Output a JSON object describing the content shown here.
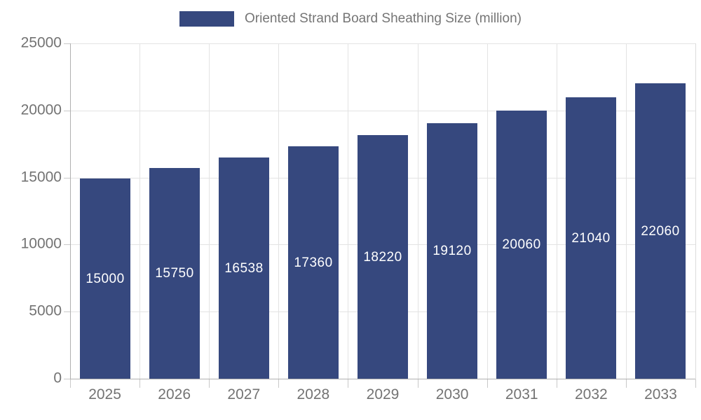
{
  "chart_data": {
    "type": "bar",
    "title": "Oriented Strand Board Sheathing Size (million)",
    "legend_entries": [
      "Oriented Strand Board Sheathing Size (million)"
    ],
    "legend_position": "top",
    "categories": [
      "2025",
      "2026",
      "2027",
      "2028",
      "2029",
      "2030",
      "2031",
      "2032",
      "2033"
    ],
    "values": [
      15000,
      15750,
      16538,
      17360,
      18220,
      19120,
      20060,
      21040,
      22060
    ],
    "value_labels": [
      "15000",
      "15750",
      "16538",
      "17360",
      "18220",
      "19120",
      "20060",
      "21040",
      "22060"
    ],
    "xlabel": "",
    "ylabel": "",
    "ylim": [
      0,
      25000
    ],
    "ytick_step": 5000,
    "ytick_labels": [
      "0",
      "5000",
      "10000",
      "15000",
      "20000",
      "25000"
    ],
    "grid": "on"
  },
  "colors": {
    "bar": "#36487E",
    "bar_value_text": "#ffffff",
    "grid_line": "#e3e3e3",
    "axis_line": "#b0b0b0",
    "tick_mark": "#c9c9c9",
    "axis_text": "#737373",
    "legend_text": "#757575",
    "background": "#ffffff"
  }
}
